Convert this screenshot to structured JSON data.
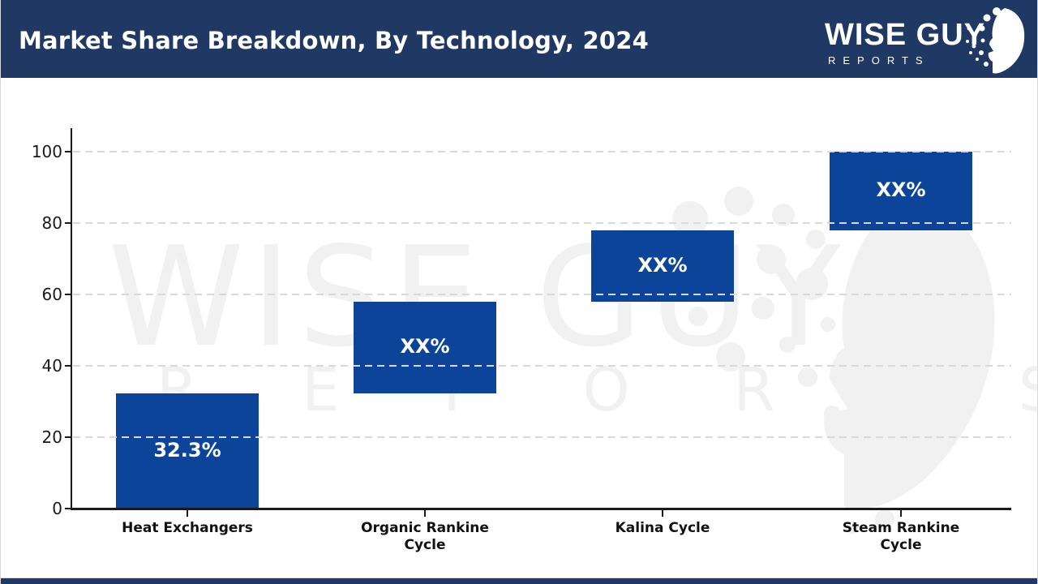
{
  "header": {
    "title": "Market Share Breakdown, By Technology, 2024",
    "bg_color": "#1f3864",
    "logo": {
      "line1": "WISE GUY",
      "line2": "R E P O R T S"
    }
  },
  "watermark": {
    "line1": "WISE GUY",
    "line2": "R E P O R T S"
  },
  "chart_data": {
    "type": "bar",
    "subtype": "waterfall",
    "title": "Market Share Breakdown, By Technology, 2024",
    "categories": [
      "Heat Exchangers",
      "Organic Rankine Cycle",
      "Kalina Cycle",
      "Steam Rankine Cycle"
    ],
    "segments": [
      {
        "category": "Heat Exchangers",
        "start": 0,
        "end": 32.3,
        "label": "32.3%"
      },
      {
        "category": "Organic Rankine Cycle",
        "start": 32.3,
        "end": 58,
        "label": "XX%"
      },
      {
        "category": "Kalina Cycle",
        "start": 58,
        "end": 78,
        "label": "XX%"
      },
      {
        "category": "Steam Rankine Cycle",
        "start": 78,
        "end": 100,
        "label": "XX%"
      }
    ],
    "y_ticks": [
      0,
      20,
      40,
      60,
      80,
      100
    ],
    "ylim": [
      0,
      106
    ],
    "xlabel": "",
    "ylabel": "",
    "grid": "dashed-horizontal",
    "legend": "none",
    "bar_color": "#0c4499",
    "bar_label_color": "#ffffff",
    "axis_color": "#1a1a1a"
  }
}
